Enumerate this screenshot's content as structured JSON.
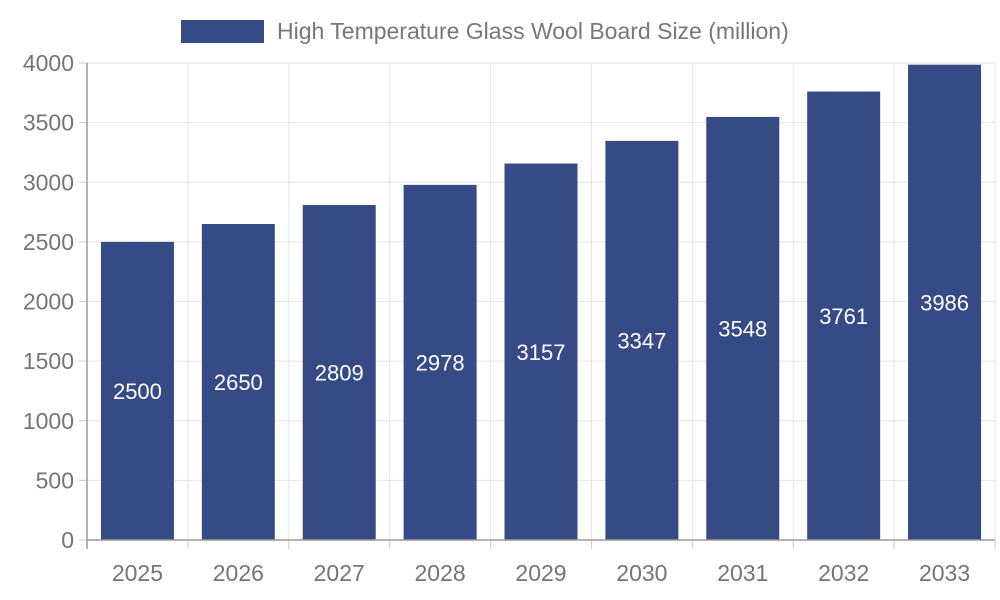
{
  "legend": {
    "label": "High Temperature Glass Wool Board Size (million)",
    "swatch_color": "#364A85"
  },
  "chart_data": {
    "type": "bar",
    "title": "High Temperature Glass Wool Board Size (million)",
    "categories": [
      "2025",
      "2026",
      "2027",
      "2028",
      "2029",
      "2030",
      "2031",
      "2032",
      "2033"
    ],
    "values": [
      2500,
      2650,
      2809,
      2978,
      3157,
      3347,
      3548,
      3761,
      3986
    ],
    "xlabel": "",
    "ylabel": "",
    "ylim": [
      0,
      4000
    ],
    "yticks": [
      0,
      500,
      1000,
      1500,
      2000,
      2500,
      3000,
      3500,
      4000
    ],
    "grid": true,
    "legend_position": "top",
    "colors": {
      "bar": "#364A85",
      "value_label": "#ffffff",
      "tick_label": "#757575",
      "gridline": "#e6e6e6",
      "axis_line": "#999999",
      "tick_mark": "#cccccc"
    }
  }
}
